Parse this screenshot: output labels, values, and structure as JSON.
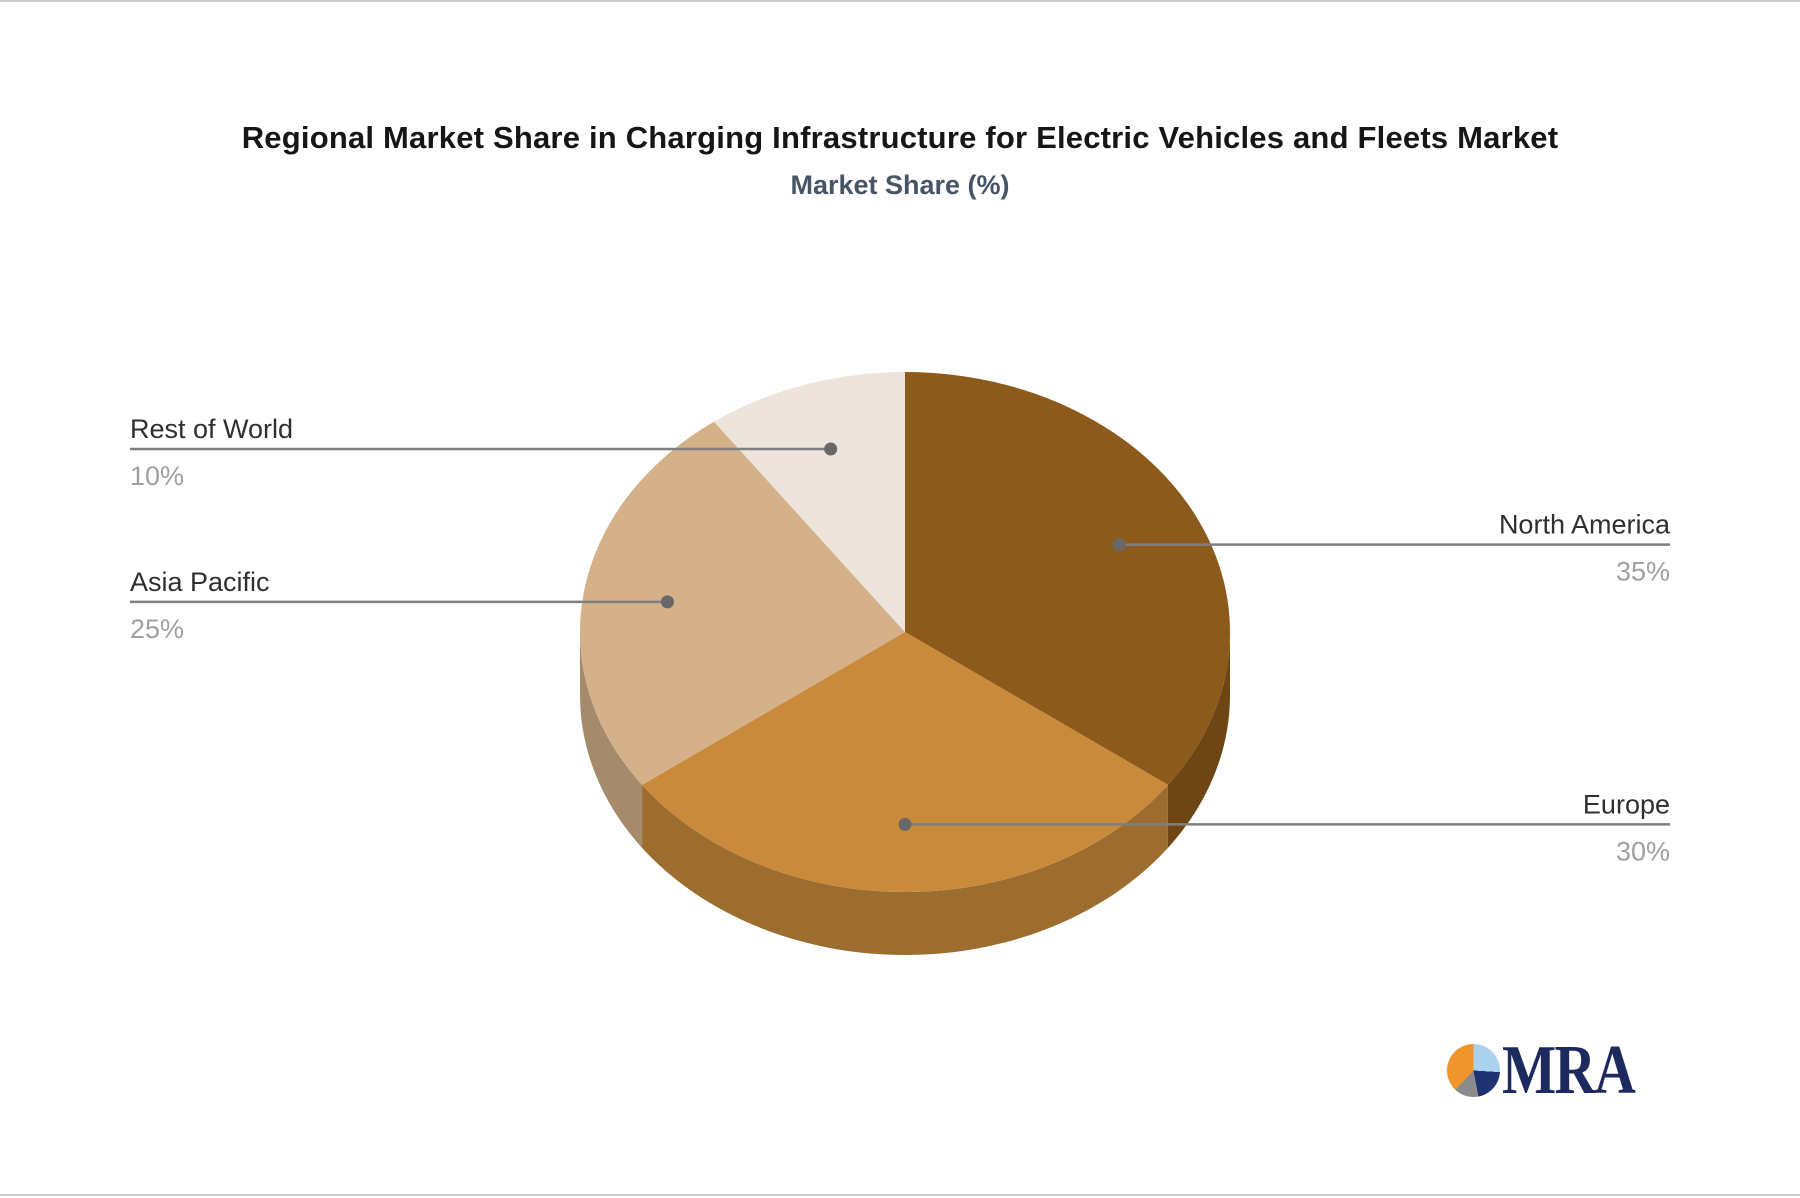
{
  "page": {
    "background": "#ffffff",
    "edge_border_color": "#cccccc"
  },
  "header": {
    "title": "Regional Market Share in Charging Infrastructure for Electric Vehicles and Fleets Market",
    "subtitle": "Market Share (%)",
    "title_color": "#161616",
    "subtitle_color": "#475466"
  },
  "chart_data": {
    "type": "pie",
    "style": "3d",
    "title": "Regional Market Share in Charging Infrastructure for Electric Vehicles and Fleets Market",
    "subtitle": "Market Share (%)",
    "unit": "%",
    "start_angle_deg": 0,
    "direction": "clockwise",
    "total": 100,
    "slices": [
      {
        "label": "North America",
        "value": 35,
        "display": "35%",
        "color": "#8C5A1A",
        "label_side": "right"
      },
      {
        "label": "Europe",
        "value": 30,
        "display": "30%",
        "color": "#C98A3C",
        "label_side": "right"
      },
      {
        "label": "Asia Pacific",
        "value": 25,
        "display": "25%",
        "color": "#D4B189",
        "label_side": "left"
      },
      {
        "label": "Rest of World",
        "value": 10,
        "display": "10%",
        "color": "#EDE4DC",
        "label_side": "left"
      }
    ],
    "leader_line_color": "#7F7F7F",
    "leader_dot_color": "#686868",
    "label_color": "#2F2F2F",
    "value_color": "#A0A0A0",
    "legend": "none"
  },
  "branding": {
    "logo_text": "MRA",
    "logo_text_color": "#1C2A60",
    "logo_mark_colors": {
      "light_blue": "#A9D2EE",
      "navy": "#1E3472",
      "gray": "#8C8C8C",
      "orange": "#F0952B"
    }
  }
}
